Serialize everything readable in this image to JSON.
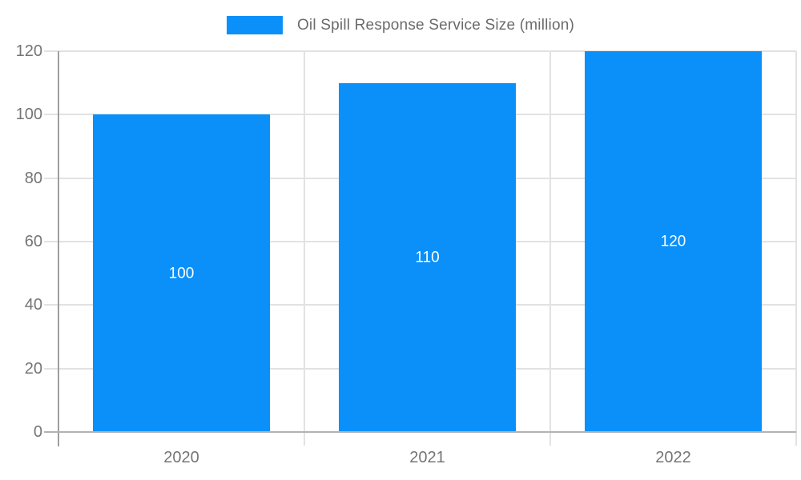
{
  "chart_data": {
    "type": "bar",
    "title": "",
    "legend": {
      "label": "Oil Spill Response Service Size (million)",
      "position": "top"
    },
    "categories": [
      "2020",
      "2021",
      "2022"
    ],
    "series": [
      {
        "name": "Oil Spill Response Service Size (million)",
        "values": [
          100,
          110,
          120
        ]
      }
    ],
    "value_labels": [
      "100",
      "110",
      "120"
    ],
    "xlabel": "",
    "ylabel": "",
    "ylim": [
      0,
      120
    ],
    "yticks": [
      0,
      20,
      40,
      60,
      80,
      100,
      120
    ],
    "grid": true,
    "colors": {
      "bar": "#0a90f8",
      "gridline": "#e2e2e2",
      "axis_y_line": "#9e9e9e",
      "axis_x_line": "#b3b3b3",
      "tick_text": "#757575",
      "legend_text": "#6b6b6b",
      "value_text": "#ffffff",
      "background": "#ffffff"
    }
  }
}
